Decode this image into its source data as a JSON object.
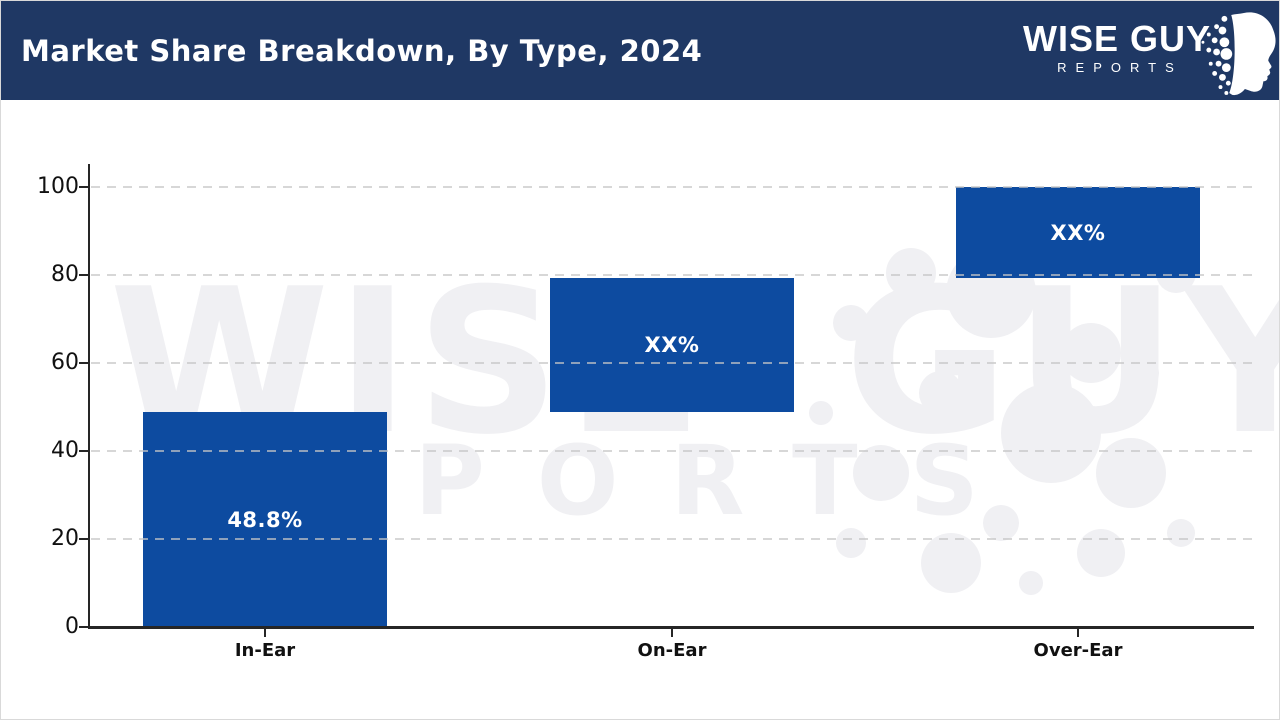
{
  "header": {
    "title": "Market Share Breakdown, By Type, 2024",
    "logo": {
      "brand": "WISE GUY",
      "sub": "REPORTS"
    }
  },
  "watermark": {
    "brand": "WISE GUY",
    "sub": "REPORTS"
  },
  "colors": {
    "header_bg": "#1F3864",
    "bar": "#0D4BA0",
    "bar_label": "#FFFFFF",
    "grid": "#C6C6C6",
    "axis": "#262626",
    "tick_label": "#111111",
    "watermark": "#F0F0F3"
  },
  "chart_data": {
    "type": "bar",
    "subtype": "waterfall",
    "title": "Market Share Breakdown, By Type, 2024",
    "categories": [
      "In-Ear",
      "On-Ear",
      "Over-Ear"
    ],
    "series": [
      {
        "name": "Market share (%)",
        "segments": [
          {
            "category": "In-Ear",
            "start": 0,
            "end": 48.8,
            "label": "48.8%"
          },
          {
            "category": "On-Ear",
            "start": 48.8,
            "end": 79.3,
            "label": "XX%"
          },
          {
            "category": "Over-Ear",
            "start": 79.3,
            "end": 100,
            "label": "XX%"
          }
        ]
      }
    ],
    "yticks": [
      0,
      20,
      40,
      60,
      80,
      100
    ],
    "ylim": [
      0,
      105
    ],
    "xlabel": "",
    "ylabel": "",
    "grid": "horizontal-dashed",
    "legend": "none"
  }
}
